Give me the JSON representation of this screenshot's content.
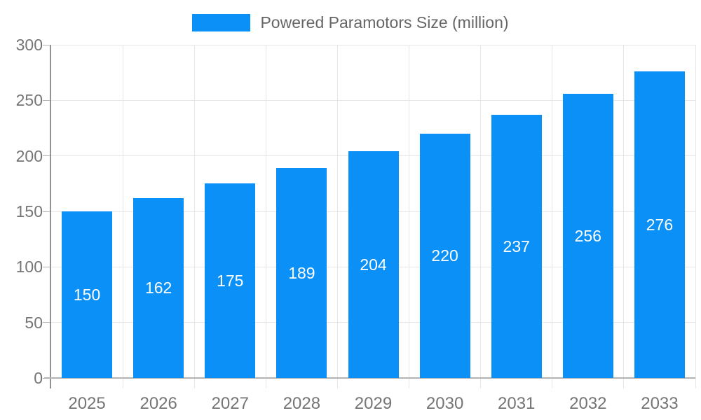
{
  "legend": {
    "label": "Powered Paramotors Size (million)"
  },
  "chart_data": {
    "type": "bar",
    "title": "Powered Paramotors Size (million)",
    "categories": [
      "2025",
      "2026",
      "2027",
      "2028",
      "2029",
      "2030",
      "2031",
      "2032",
      "2033"
    ],
    "values": [
      150,
      162,
      175,
      189,
      204,
      220,
      237,
      256,
      276
    ],
    "xlabel": "",
    "ylabel": "",
    "ylim": [
      0,
      300
    ],
    "yticks": [
      0,
      50,
      100,
      150,
      200,
      250,
      300
    ],
    "grid": true,
    "legend_position": "top-center",
    "bar_value_labels": "inside-center",
    "colors": {
      "bar": "#0a90f6",
      "bar_label": "#ffffff",
      "grid": "#e6e6e6",
      "x_axis_line": "#b3b3b3",
      "y_axis_line": "#939393",
      "tick": "#b3b3b3",
      "axis_text": "#757575",
      "legend_text": "#666666",
      "background": "#ffffff"
    }
  }
}
